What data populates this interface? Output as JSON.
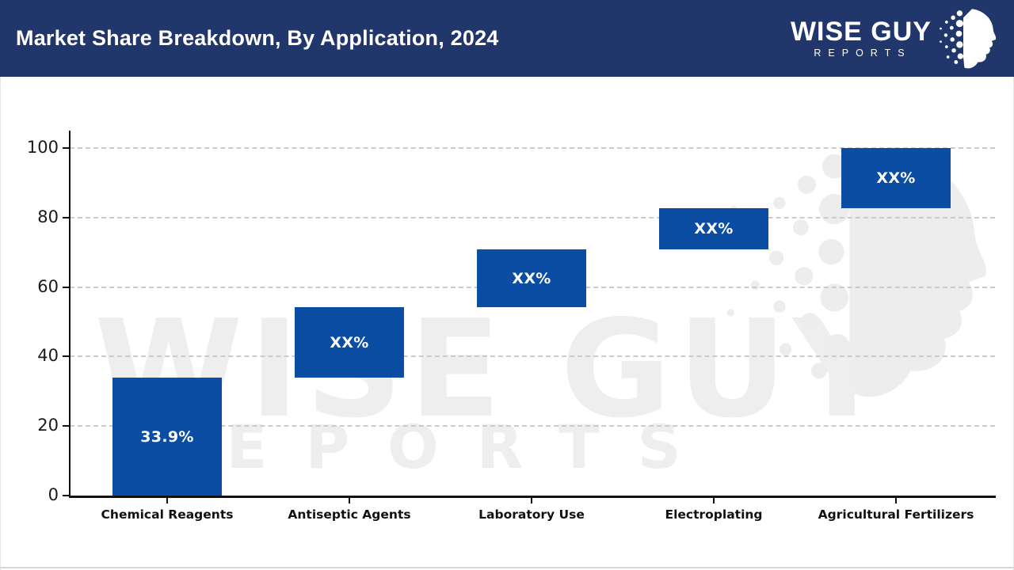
{
  "header": {
    "title": "Market Share Breakdown, By Application, 2024",
    "logo": {
      "line1": "WISE GUY",
      "line2": "REPORTS"
    }
  },
  "watermark": {
    "line1": "WISE GUY",
    "line2": "REPORTS"
  },
  "chart_data": {
    "type": "bar",
    "subtype": "waterfall",
    "title": "Market Share Breakdown, By Application, 2024",
    "categories": [
      "Chemical Reagents",
      "Antiseptic Agents",
      "Laboratory Use",
      "Electroplating",
      "Agricultural Fertilizers"
    ],
    "bars": [
      {
        "category": "Chemical Reagents",
        "label": "33.9%",
        "start": 0,
        "end": 33.9
      },
      {
        "category": "Antiseptic Agents",
        "label": "XX%",
        "start": 33.9,
        "end": 54.2
      },
      {
        "category": "Laboratory Use",
        "label": "XX%",
        "start": 54.2,
        "end": 70.8
      },
      {
        "category": "Electroplating",
        "label": "XX%",
        "start": 70.8,
        "end": 82.7
      },
      {
        "category": "Agricultural Fertilizers",
        "label": "XX%",
        "start": 82.7,
        "end": 100
      }
    ],
    "yticks": [
      0,
      20,
      40,
      60,
      80,
      100
    ],
    "ylim": [
      0,
      105
    ],
    "xlabel": "",
    "ylabel": "",
    "grid": "horizontal-dashed",
    "legend": "none",
    "colors": {
      "bar": "#0b4da2",
      "bar_label": "#ffffff",
      "header_bg": "#21366b",
      "gridline": "#cbcbcb",
      "axis": "#000000",
      "watermark": "#ededee"
    }
  }
}
